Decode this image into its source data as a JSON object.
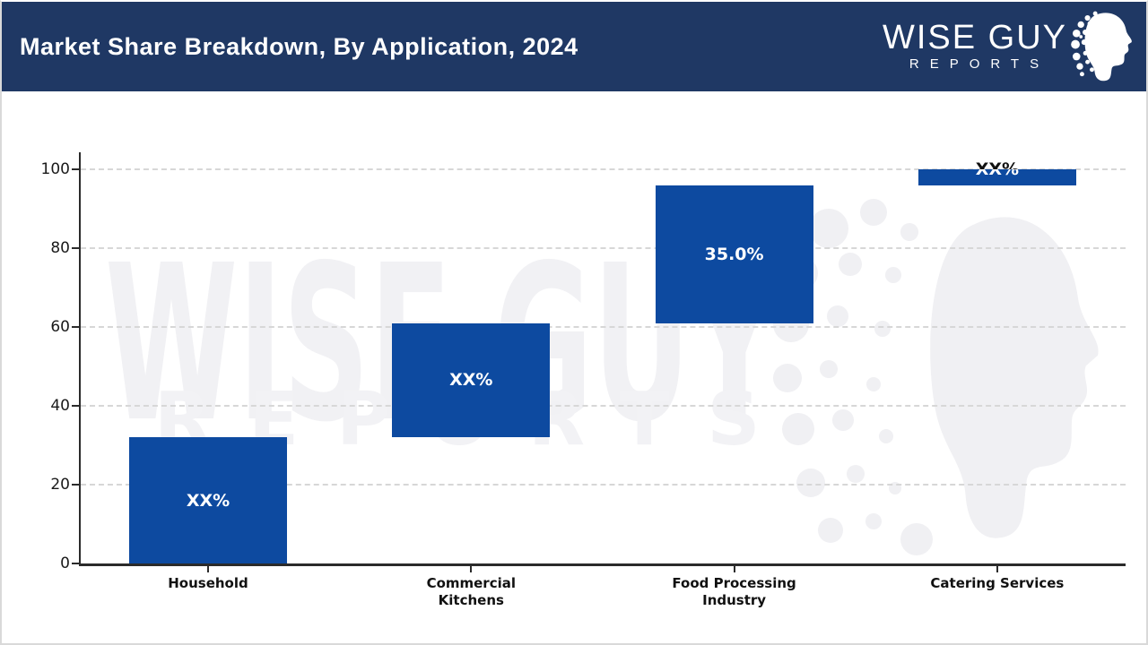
{
  "header": {
    "title": "Market Share Breakdown, By Application, 2024",
    "logo": {
      "line1": "WISE GUY",
      "line2": "REPORTS"
    }
  },
  "watermark": {
    "line1": "WISE GUY",
    "line2": "REPORTS"
  },
  "colors": {
    "header_bg": "#1f3864",
    "bar": "#0d4aa0",
    "axis": "#2b2b2b",
    "grid": "#d7d7d7",
    "bar_label_light": "#ffffff",
    "bar_label_dark": "#111111",
    "watermark": "#f1f1f4"
  },
  "chart_data": {
    "type": "bar",
    "subtype": "waterfall",
    "title": "Market Share Breakdown, By Application, 2024",
    "categories": [
      "Household",
      "Commercial Kitchens",
      "Food Processing Industry",
      "Catering Services"
    ],
    "category_label_lines": [
      [
        "Household"
      ],
      [
        "Commercial",
        "Kitchens"
      ],
      [
        "Food Processing",
        "Industry"
      ],
      [
        "Catering Services"
      ]
    ],
    "segments": [
      {
        "category": "Household",
        "start": 0,
        "end": 32,
        "label": "XX%"
      },
      {
        "category": "Commercial Kitchens",
        "start": 32,
        "end": 61,
        "label": "XX%"
      },
      {
        "category": "Food Processing Industry",
        "start": 61,
        "end": 96,
        "label": "35.0%"
      },
      {
        "category": "Catering Services",
        "start": 96,
        "end": 100,
        "label": "XX%"
      }
    ],
    "xlabel": "",
    "ylabel": "",
    "yticks": [
      0,
      20,
      40,
      60,
      80,
      100
    ],
    "ylim": [
      0,
      100
    ],
    "grid": "horizontal-dashed",
    "legend": "none"
  }
}
